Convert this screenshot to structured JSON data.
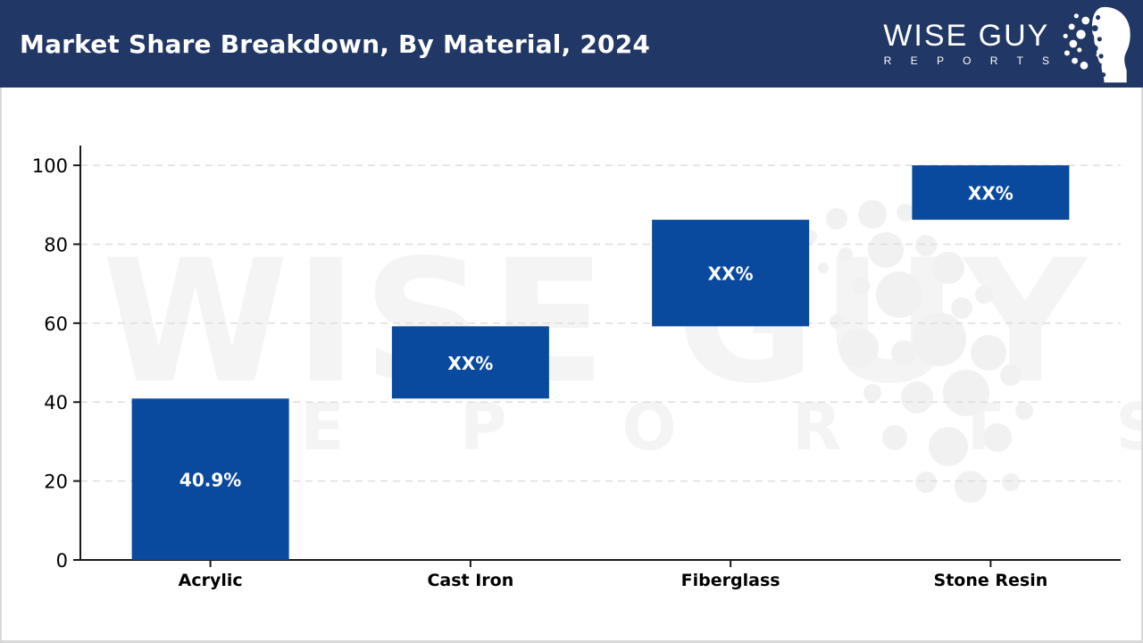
{
  "header": {
    "title": "Market Share Breakdown, By Material, 2024",
    "bg_color": "#213765",
    "logo": {
      "line1": "WISE GUY",
      "line2": "R E P O R T S"
    }
  },
  "watermark": {
    "line1": "WISE GUY",
    "line2": "R E P O R T S"
  },
  "chart_data": {
    "type": "bar",
    "subtype": "floating-waterfall",
    "title": "Market Share Breakdown, By Material, 2024",
    "categories": [
      "Acrylic",
      "Cast Iron",
      "Fiberglass",
      "Stone Resin"
    ],
    "segments": [
      {
        "category": "Acrylic",
        "start": 0,
        "end": 40.9,
        "label": "40.9%"
      },
      {
        "category": "Cast Iron",
        "start": 40.9,
        "end": 59.2,
        "label": "XX%"
      },
      {
        "category": "Fiberglass",
        "start": 59.2,
        "end": 86.2,
        "label": "XX%"
      },
      {
        "category": "Stone Resin",
        "start": 86.2,
        "end": 100,
        "label": "XX%"
      }
    ],
    "yticks": [
      0,
      20,
      40,
      60,
      80,
      100
    ],
    "ylim": [
      0,
      105
    ],
    "xlabel": "",
    "ylabel": "",
    "bar_color": "#0a4a9e",
    "bar_label_color": "#ffffff",
    "axis_color": "#1a1a1a",
    "grid": "horizontal-dashed",
    "grid_color": "#dedede",
    "legend": "none"
  }
}
